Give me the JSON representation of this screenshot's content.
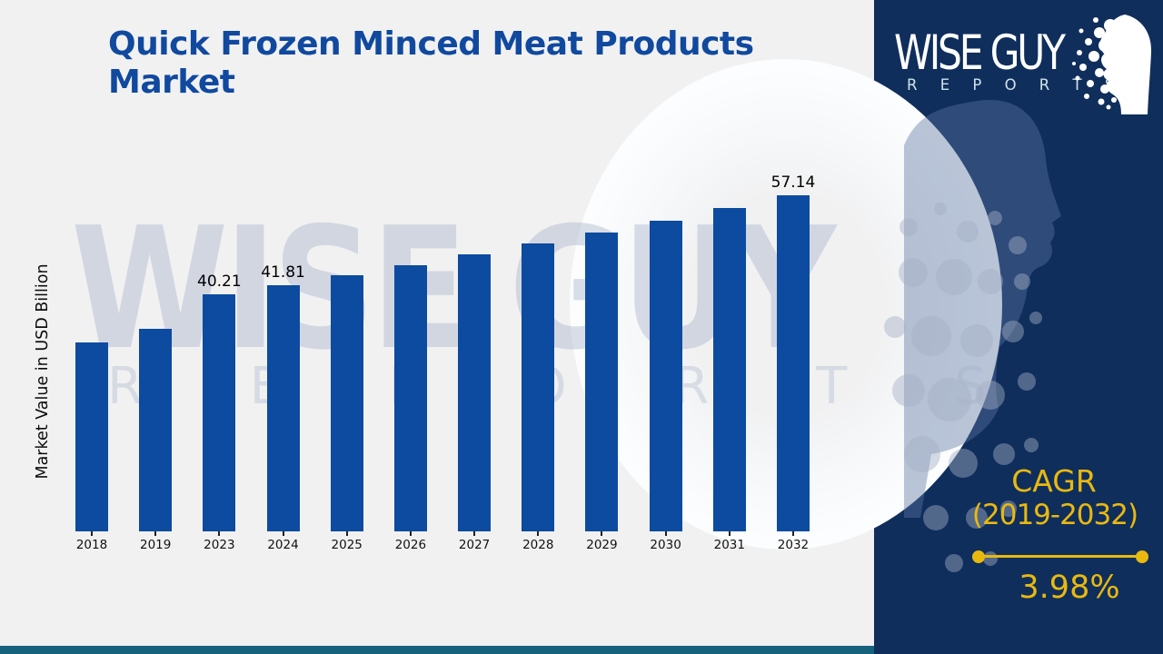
{
  "title": "Quick Frozen Minced Meat Products\nMarket",
  "brand": {
    "wordmark": "WISE GUY",
    "reports": "REPORTS",
    "head_icon": "dotted-face-profile-icon"
  },
  "watermark": {
    "line1": "WISE GUY",
    "line2": "R E P O R T S"
  },
  "cagr": {
    "heading": "CAGR",
    "range": "(2019-2032)",
    "value": "3.98%"
  },
  "chart_data": {
    "type": "bar",
    "title": "Quick Frozen Minced Meat Products Market",
    "xlabel": "",
    "ylabel": "Market Value in USD Billion",
    "categories": [
      "2018",
      "2019",
      "2023",
      "2024",
      "2025",
      "2026",
      "2027",
      "2028",
      "2029",
      "2030",
      "2031",
      "2032"
    ],
    "values": [
      32.1,
      34.41,
      40.21,
      41.81,
      43.47,
      45.2,
      47.0,
      48.87,
      50.82,
      52.84,
      54.94,
      57.14
    ],
    "data_labels": [
      "",
      "",
      "40.21",
      "41.81",
      "",
      "",
      "",
      "",
      "",
      "",
      "",
      "57.14"
    ],
    "ylim": [
      0,
      62
    ],
    "grid": "off",
    "legend": "none",
    "bar_color": "#0c4ba0"
  },
  "colors": {
    "background": "#f1f1f2",
    "panel_navy": "#0f2e5c",
    "bar_blue": "#0c4ba0",
    "title_blue": "#10499e",
    "accent_gold": "#e9b90f",
    "bottom_teal": "#16617c",
    "watermark_gray": "#a8b0c6"
  }
}
